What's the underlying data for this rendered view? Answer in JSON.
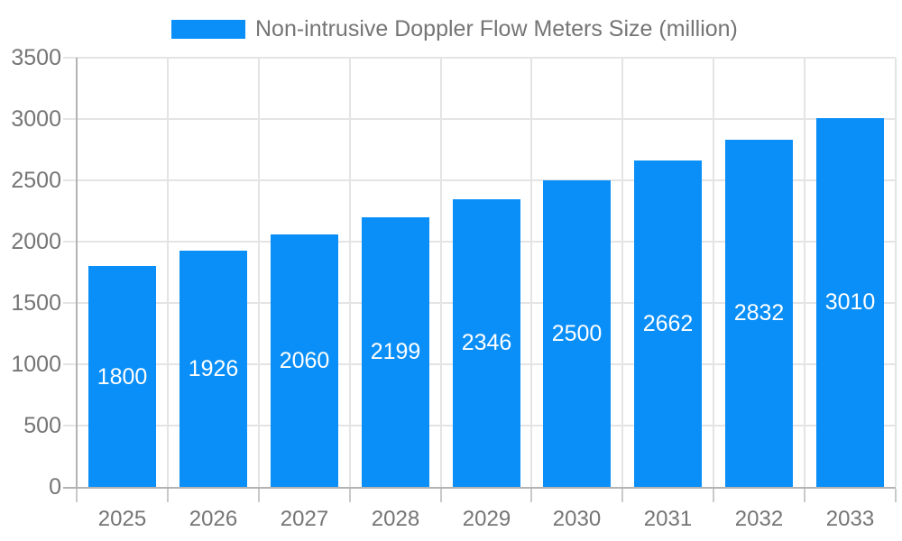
{
  "legend": {
    "label": "Non-intrusive Doppler Flow Meters Size (million)"
  },
  "chart_data": {
    "type": "bar",
    "title": "",
    "series_name": "Non-intrusive Doppler Flow Meters Size (million)",
    "categories": [
      "2025",
      "2026",
      "2027",
      "2028",
      "2029",
      "2030",
      "2031",
      "2032",
      "2033"
    ],
    "values": [
      1800,
      1926,
      2060,
      2199,
      2346,
      2500,
      2662,
      2832,
      3010
    ],
    "bar_labels": [
      "1800",
      "1926",
      "2060",
      "2199",
      "2346",
      "2500",
      "2662",
      "2832",
      "3010"
    ],
    "xlabel": "",
    "ylabel": "",
    "ylim": [
      0,
      3500
    ],
    "yticks": [
      0,
      500,
      1000,
      1500,
      2000,
      2500,
      3000,
      3500
    ],
    "grid": true,
    "legend_position": "top-center",
    "bar_label_position": "inside-middle"
  },
  "colors": {
    "bar": "#0A8FF8",
    "bar_label_text": "#FFFFFF",
    "axis_line": "#B3B3B3",
    "gridline": "#E4E4E4",
    "boundary_tick": "#C9C9C9",
    "tick_text": "#757575",
    "legend_text": "#757575",
    "background": "#FFFFFF"
  }
}
